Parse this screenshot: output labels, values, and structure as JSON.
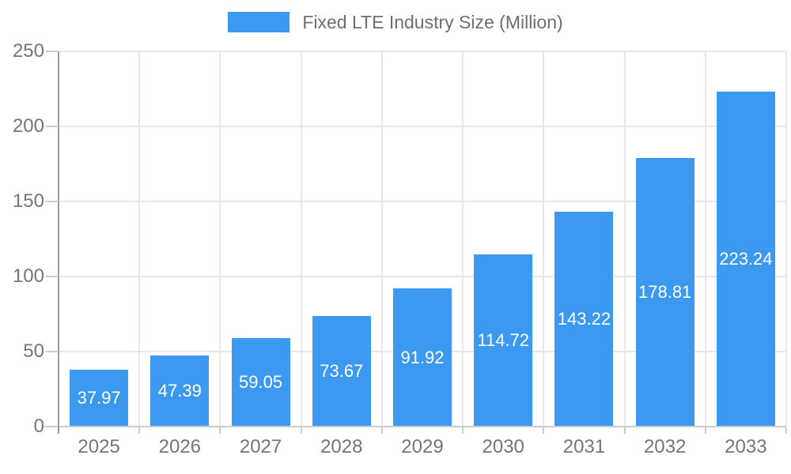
{
  "legend": {
    "label": "Fixed LTE Industry Size (Million)"
  },
  "chart_data": {
    "type": "bar",
    "title": "",
    "legend_entries": [
      "Fixed LTE Industry Size (Million)"
    ],
    "legend_position": "top",
    "categories": [
      "2025",
      "2026",
      "2027",
      "2028",
      "2029",
      "2030",
      "2031",
      "2032",
      "2033"
    ],
    "values": [
      37.97,
      47.39,
      59.05,
      73.67,
      91.92,
      114.72,
      143.22,
      178.81,
      223.24
    ],
    "value_labels": [
      "37.97",
      "47.39",
      "59.05",
      "73.67",
      "91.92",
      "114.72",
      "143.22",
      "178.81",
      "223.24"
    ],
    "xlabel": "",
    "ylabel": "",
    "ylim": [
      0,
      250
    ],
    "yticks": [
      0,
      50,
      100,
      150,
      200,
      250
    ],
    "ytick_labels": [
      "0",
      "50",
      "100",
      "150",
      "200",
      "250"
    ],
    "grid": true,
    "colors": {
      "bar": "#3B99F0",
      "bar_label": "#FFFFFF",
      "axis_text": "#757575",
      "legend_text": "#6E6E6E",
      "gridline": "#E8E8E8",
      "x_axis_line": "#CCCCCC",
      "y_axis_line": "#999999"
    }
  }
}
